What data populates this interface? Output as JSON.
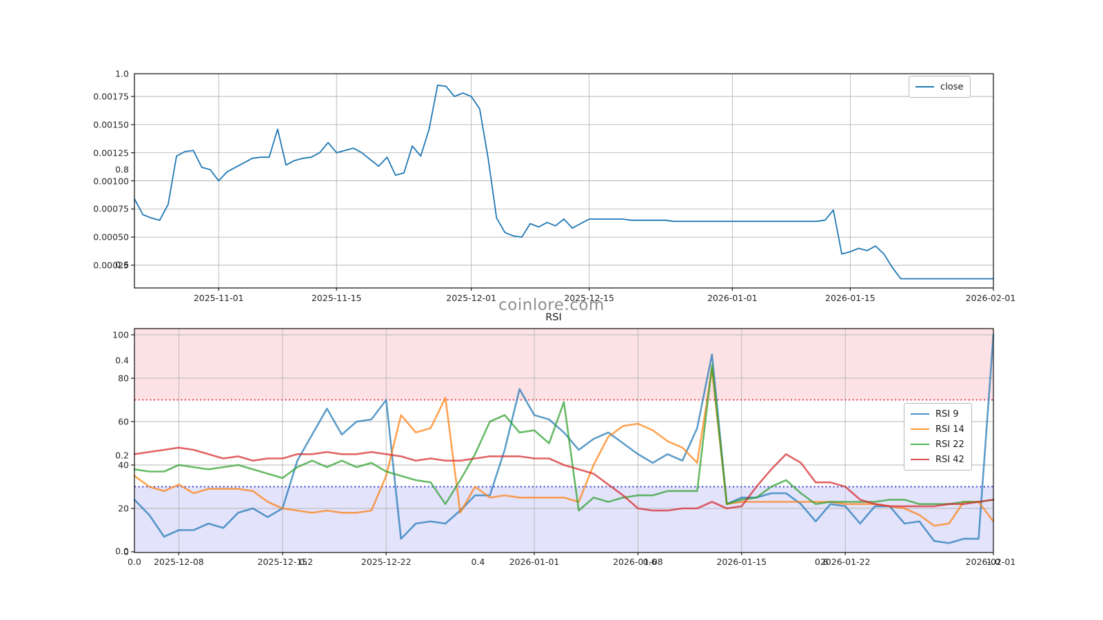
{
  "watermark": "coinlore.com",
  "rsi_title": "RSI",
  "colors": {
    "close": "#1f77b4",
    "grid": "#b5b5b5",
    "spine": "#1a1a1a",
    "overbought_line": "#e0242f",
    "oversold_line": "#2323cc",
    "overbought_band": "rgba(240,20,40,0.12)",
    "oversold_band": "rgba(40,40,230,0.13)"
  },
  "ghost_axis": {
    "y_labels": [
      "1.0",
      "0.8",
      "0.6",
      "0.4",
      "0.2",
      "0.0"
    ],
    "x_labels": [
      "0.0",
      "0.2",
      "0.4",
      "0.6",
      "0.8",
      "1.0"
    ]
  },
  "chart_data": [
    {
      "type": "line",
      "title": "",
      "x_start": "2025-10-22",
      "x_end": "2026-02-01",
      "grid": true,
      "legend_position": "upper right",
      "x_ticks": [
        {
          "label": "2025-11-01",
          "day": 10
        },
        {
          "label": "2025-11-15",
          "day": 24
        },
        {
          "label": "2025-12-01",
          "day": 40
        },
        {
          "label": "2025-12-15",
          "day": 54
        },
        {
          "label": "2026-01-01",
          "day": 71
        },
        {
          "label": "2026-01-15",
          "day": 85
        },
        {
          "label": "2026-02-01",
          "day": 102
        }
      ],
      "y_tick_labels": [
        "0.00175",
        "0.00150",
        "0.00125",
        "0.00100",
        "0.00075",
        "0.00050",
        "0.00025"
      ],
      "y_ticks": [
        0.00175,
        0.0015,
        0.00125,
        0.001,
        0.00075,
        0.0005,
        0.00025
      ],
      "ylim": [
        5e-05,
        0.00194
      ],
      "series": [
        {
          "name": "close",
          "color": "#1f77b4",
          "opacity": 1,
          "width": 1.8,
          "values": [
            0.00084,
            0.0007,
            0.00067,
            0.00065,
            0.00079,
            0.00122,
            0.00126,
            0.00127,
            0.00112,
            0.0011,
            0.001,
            0.00108,
            0.00112,
            0.00116,
            0.0012,
            0.00121,
            0.00121,
            0.00146,
            0.00114,
            0.00118,
            0.0012,
            0.00121,
            0.00125,
            0.00134,
            0.00125,
            0.00127,
            0.00129,
            0.00125,
            0.00119,
            0.00113,
            0.00121,
            0.00105,
            0.00107,
            0.00131,
            0.00122,
            0.00146,
            0.00185,
            0.00184,
            0.00175,
            0.00178,
            0.00175,
            0.00164,
            0.0012,
            0.00067,
            0.00054,
            0.00051,
            0.0005,
            0.00062,
            0.00059,
            0.00063,
            0.0006,
            0.00066,
            0.00058,
            0.00062,
            0.00066,
            0.00066,
            0.00066,
            0.00066,
            0.00066,
            0.00065,
            0.00065,
            0.00065,
            0.00065,
            0.00065,
            0.00064,
            0.00064,
            0.00064,
            0.00064,
            0.00064,
            0.00064,
            0.00064,
            0.00064,
            0.00064,
            0.00064,
            0.00064,
            0.00064,
            0.00064,
            0.00064,
            0.00064,
            0.00064,
            0.00064,
            0.00064,
            0.00065,
            0.00074,
            0.00035,
            0.00037,
            0.0004,
            0.00038,
            0.00042,
            0.00035,
            0.00023,
            0.00013,
            0.00013,
            0.00013,
            0.00013,
            0.00013,
            0.00013,
            0.00013,
            0.00013,
            0.00013,
            0.00013,
            0.00013,
            0.00013
          ]
        }
      ]
    },
    {
      "type": "line",
      "title": "RSI",
      "x_start": "2025-12-05",
      "x_end": "2026-02-01",
      "grid": true,
      "legend_position": "right",
      "x_ticks": [
        {
          "label": "2025-12-08",
          "day": 3
        },
        {
          "label": "2025-12-15",
          "day": 10
        },
        {
          "label": "2025-12-22",
          "day": 17
        },
        {
          "label": "2026-01-01",
          "day": 27
        },
        {
          "label": "2026-01-08",
          "day": 34
        },
        {
          "label": "2026-01-15",
          "day": 41
        },
        {
          "label": "2026-01-22",
          "day": 48
        },
        {
          "label": "2026-02-01",
          "day": 58
        }
      ],
      "y_ticks": [
        100,
        80,
        60,
        40,
        20,
        0
      ],
      "ylim": [
        0,
        103
      ],
      "overbought": 70,
      "oversold": 30,
      "bands": [
        {
          "from": 70,
          "to": 103,
          "color_key": "overbought_band"
        },
        {
          "from": 0,
          "to": 30,
          "color_key": "oversold_band"
        }
      ],
      "series": [
        {
          "name": "RSI 9",
          "color": "#1f77b4",
          "opacity": 0.72,
          "width": 2.6,
          "values": [
            24,
            17,
            7,
            10,
            10,
            13,
            11,
            18,
            20,
            16,
            20,
            42,
            54,
            66,
            54,
            60,
            61,
            70,
            6,
            13,
            14,
            13,
            19,
            26,
            26,
            47,
            75,
            63,
            61,
            55,
            47,
            52,
            55,
            50,
            45,
            41,
            45,
            42,
            57,
            91,
            22,
            25,
            25,
            27,
            27,
            22,
            14,
            22,
            21,
            13,
            21,
            21,
            13,
            14,
            5,
            4,
            6,
            6,
            100
          ]
        },
        {
          "name": "RSI 14",
          "color": "#ff7f0e",
          "opacity": 0.72,
          "width": 2.6,
          "values": [
            35,
            30,
            28,
            31,
            27,
            29,
            29,
            29,
            28,
            23,
            20,
            19,
            18,
            19,
            18,
            18,
            19,
            35,
            63,
            55,
            57,
            71,
            18,
            30,
            25,
            26,
            25,
            25,
            25,
            25,
            23,
            40,
            53,
            58,
            59,
            56,
            51,
            48,
            41,
            84,
            22,
            23,
            23,
            23,
            23,
            23,
            23,
            23,
            22,
            22,
            22,
            21,
            20,
            17,
            12,
            13,
            23,
            23,
            14
          ]
        },
        {
          "name": "RSI 22",
          "color": "#2ca02c",
          "opacity": 0.72,
          "width": 2.6,
          "values": [
            38,
            37,
            37,
            40,
            39,
            38,
            39,
            40,
            38,
            36,
            34,
            39,
            42,
            39,
            42,
            39,
            41,
            37,
            35,
            33,
            32,
            22,
            33,
            45,
            60,
            63,
            55,
            56,
            50,
            69,
            19,
            25,
            23,
            25,
            26,
            26,
            28,
            28,
            28,
            86,
            22,
            24,
            25,
            30,
            33,
            27,
            22,
            23,
            23,
            23,
            23,
            24,
            24,
            22,
            22,
            22,
            23,
            23,
            24
          ]
        },
        {
          "name": "RSI 42",
          "color": "#d62728",
          "opacity": 0.72,
          "width": 2.6,
          "values": [
            45,
            46,
            47,
            48,
            47,
            45,
            43,
            44,
            42,
            43,
            43,
            45,
            45,
            46,
            45,
            45,
            46,
            45,
            44,
            42,
            43,
            42,
            42,
            43,
            44,
            44,
            44,
            43,
            43,
            40,
            38,
            36,
            31,
            26,
            20,
            19,
            19,
            20,
            20,
            23,
            20,
            21,
            30,
            38,
            45,
            41,
            32,
            32,
            30,
            24,
            22,
            21,
            21,
            21,
            21,
            22,
            22,
            23,
            24
          ]
        }
      ]
    }
  ]
}
